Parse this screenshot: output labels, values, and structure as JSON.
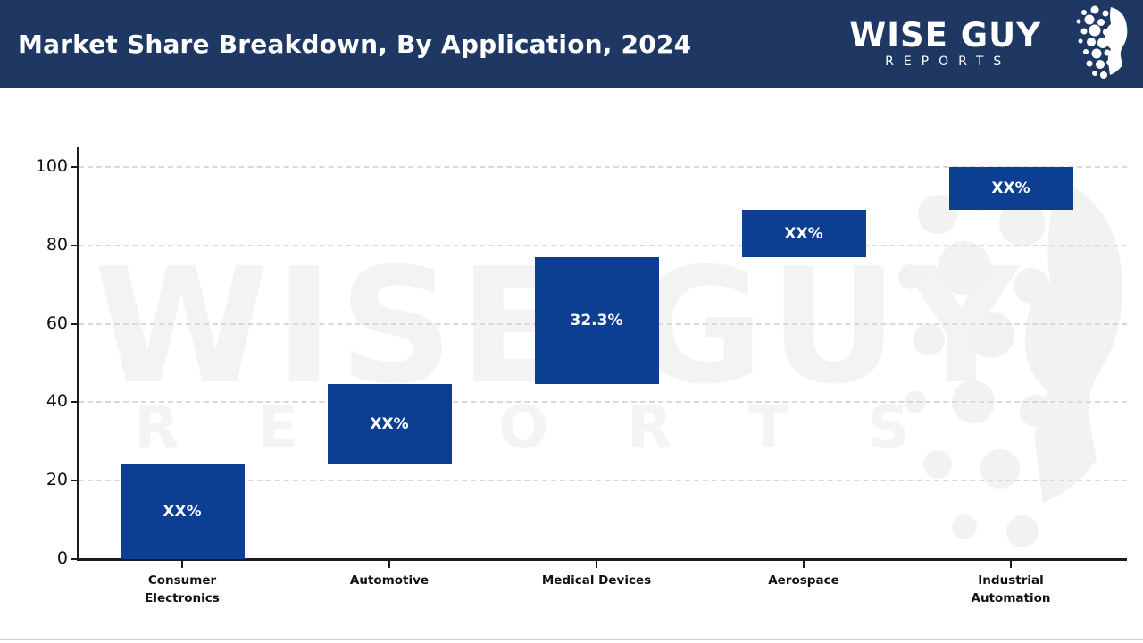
{
  "header": {
    "title": "Market Share Breakdown, By Application, 2024",
    "bg_color": "#1f3863",
    "logo": {
      "line1": "WISE GUY",
      "line2": "REPORTS"
    }
  },
  "watermark": {
    "line1": "WISE GUY",
    "line2": "REPORTS"
  },
  "chart_data": {
    "type": "bar",
    "subtype": "waterfall",
    "title": "Market Share Breakdown, By Application, 2024",
    "categories": [
      "Consumer Electronics",
      "Automotive",
      "Medical Devices",
      "Aerospace",
      "Industrial Automation"
    ],
    "category_display_lines": [
      [
        "Consumer",
        "Electronics"
      ],
      [
        "Automotive"
      ],
      [
        "Medical Devices"
      ],
      [
        "Aerospace"
      ],
      [
        "Industrial",
        "Automation"
      ]
    ],
    "values": [
      24.2,
      20.4,
      32.3,
      12.1,
      11.0
    ],
    "cumulative_start": [
      0,
      24.2,
      44.6,
      76.9,
      89.0
    ],
    "cumulative_end": [
      24.2,
      44.6,
      76.9,
      89.0,
      100.0
    ],
    "bar_labels": [
      "XX%",
      "XX%",
      "32.3%",
      "XX%",
      "XX%"
    ],
    "xlabel": "",
    "ylabel": "",
    "yticks": [
      0,
      20,
      40,
      60,
      80,
      100
    ],
    "ylim": [
      0,
      105
    ],
    "grid": "horizontal-dashed",
    "legend": "none",
    "bar_color": "#0c3e92",
    "bar_label_color": "#ffffff"
  }
}
